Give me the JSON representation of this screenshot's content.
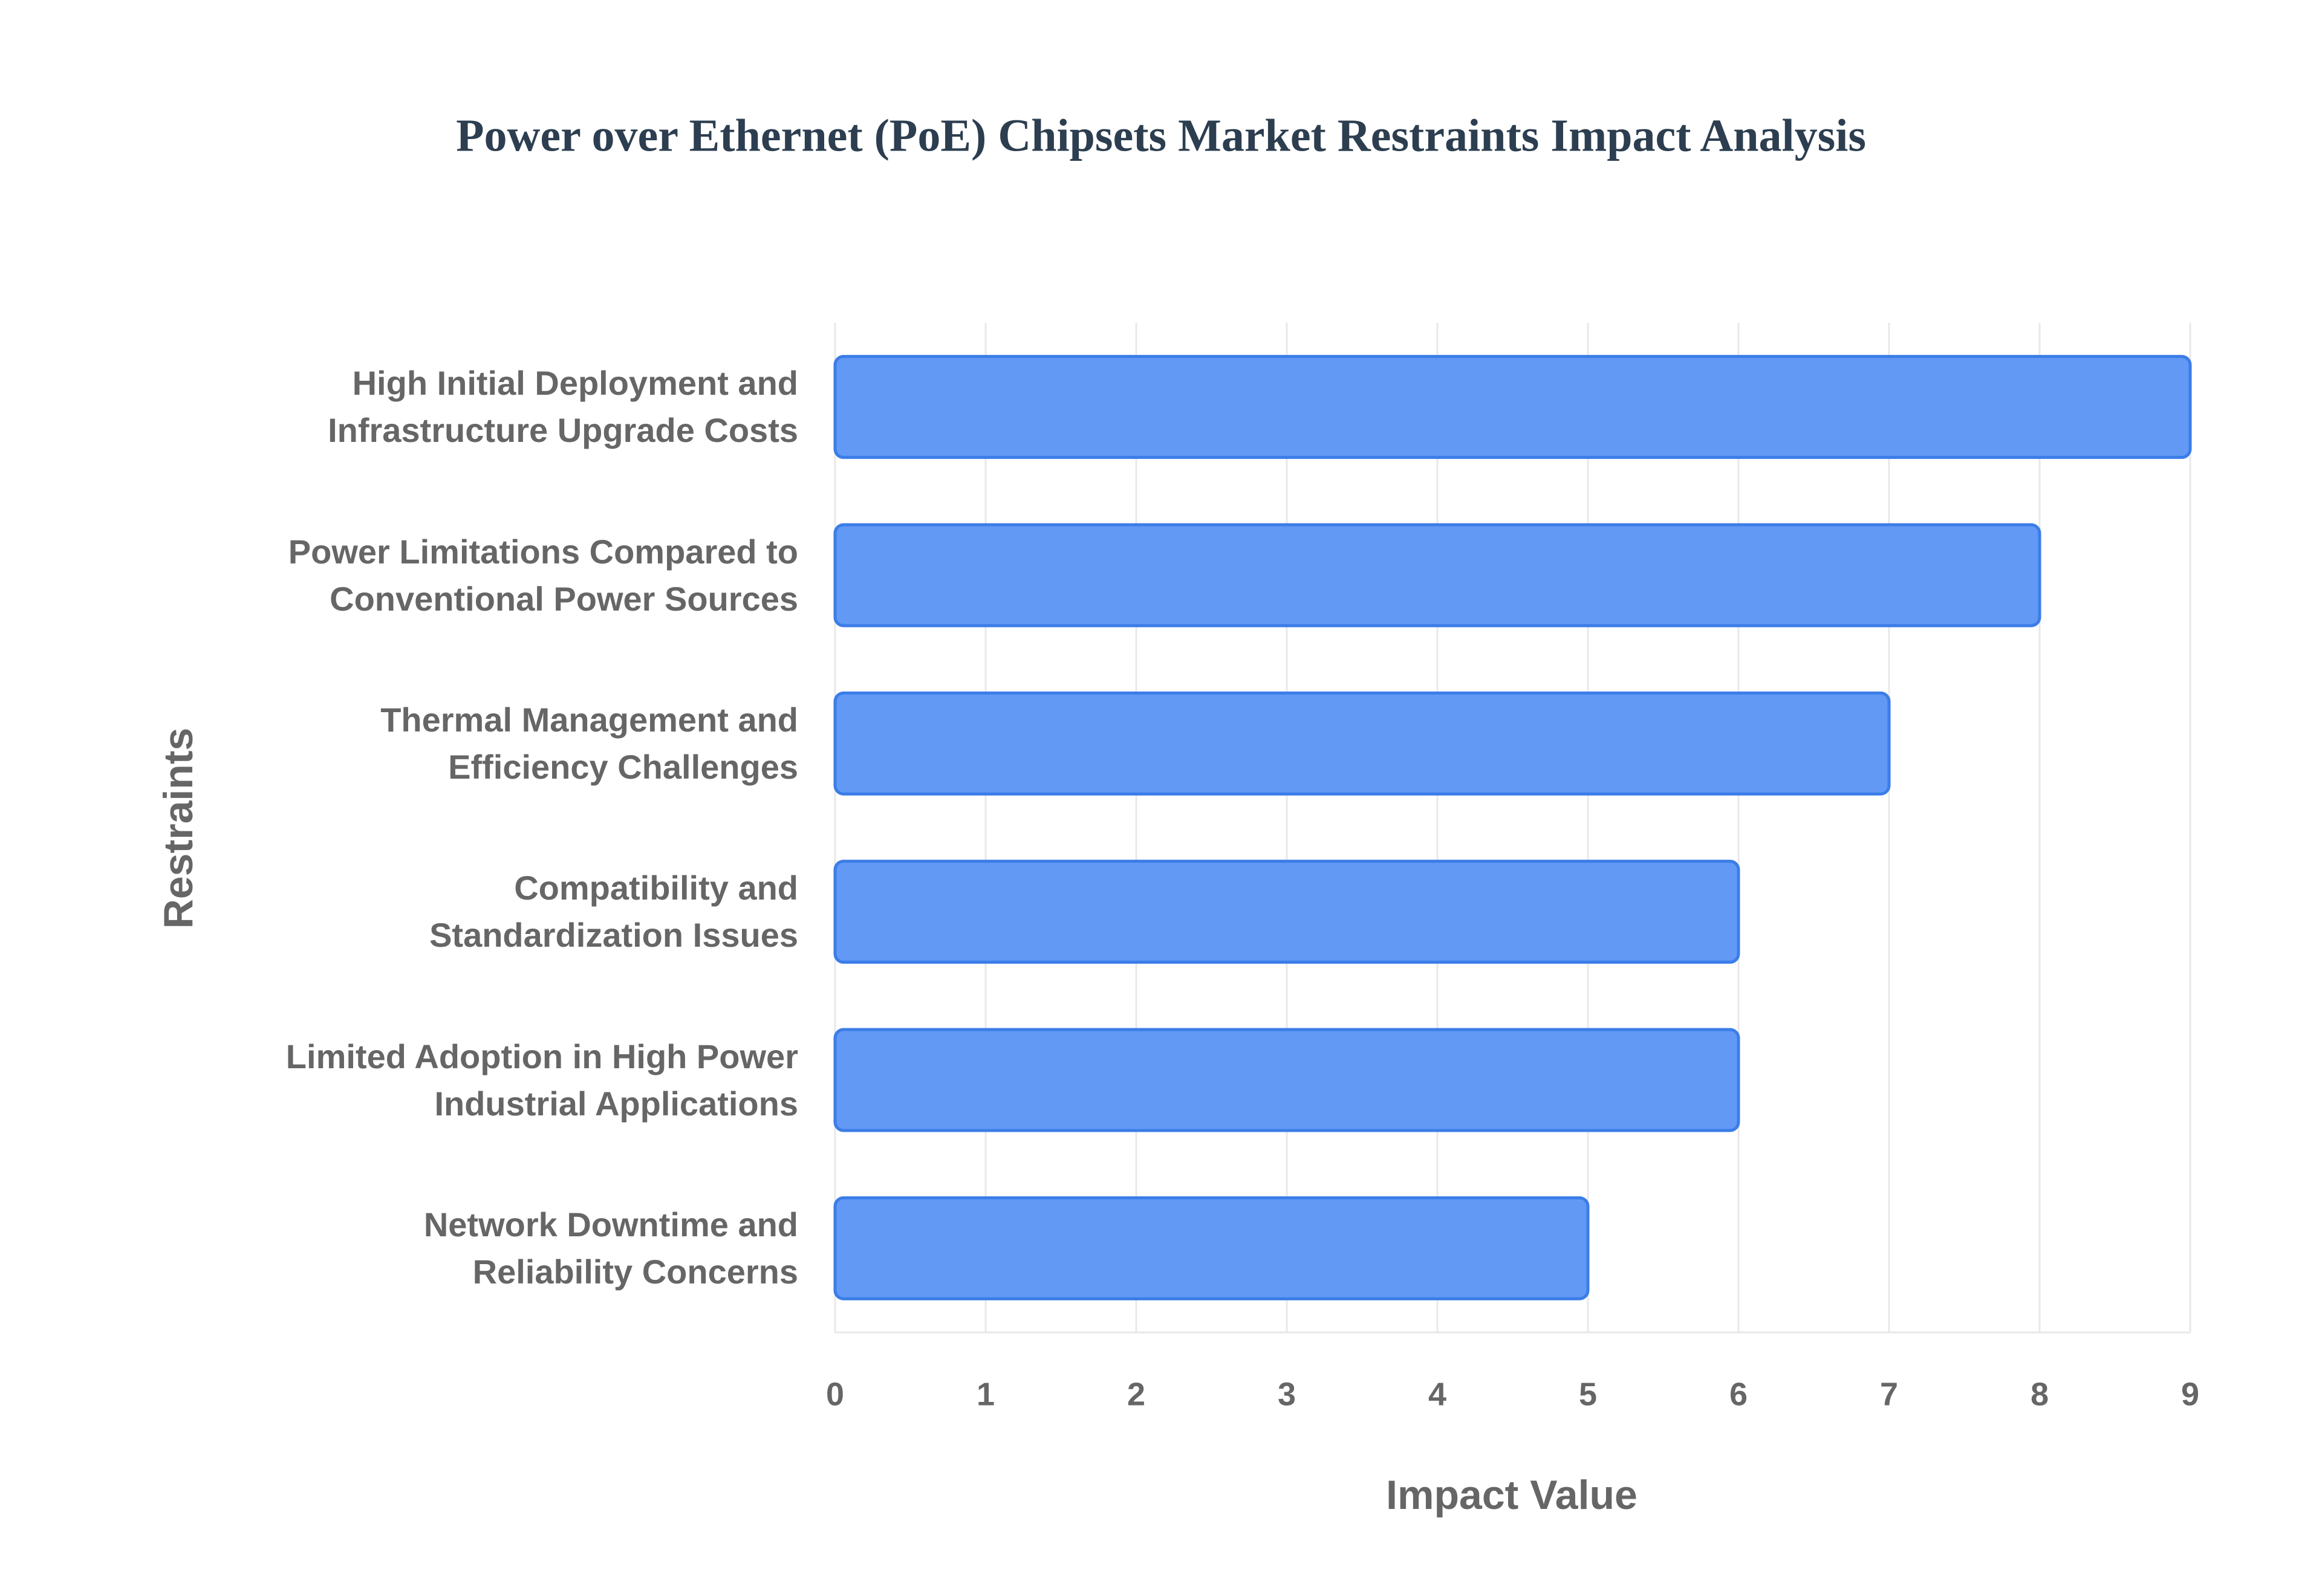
{
  "chart_data": {
    "type": "hbar",
    "title": "Power over Ethernet (PoE) Chipsets Market Restraints Impact Analysis",
    "x_label": "Impact Value",
    "y_label": "Restraints",
    "categories": [
      "High Initial Deployment and\nInfrastructure Upgrade Costs",
      "Power Limitations Compared to\nConventional Power Sources",
      "Thermal Management and\nEfficiency Challenges",
      "Compatibility and\nStandardization Issues",
      "Limited Adoption in High Power\nIndustrial Applications",
      "Network Downtime and\nReliability Concerns"
    ],
    "values": [
      9,
      8,
      7,
      6,
      6,
      5
    ],
    "color": "#6199f5",
    "edge_color": "#3b7de8",
    "xlim": [
      0,
      9
    ],
    "xticks": [
      0,
      1,
      2,
      3,
      4,
      5,
      6,
      7,
      8,
      9
    ],
    "grid": true
  }
}
